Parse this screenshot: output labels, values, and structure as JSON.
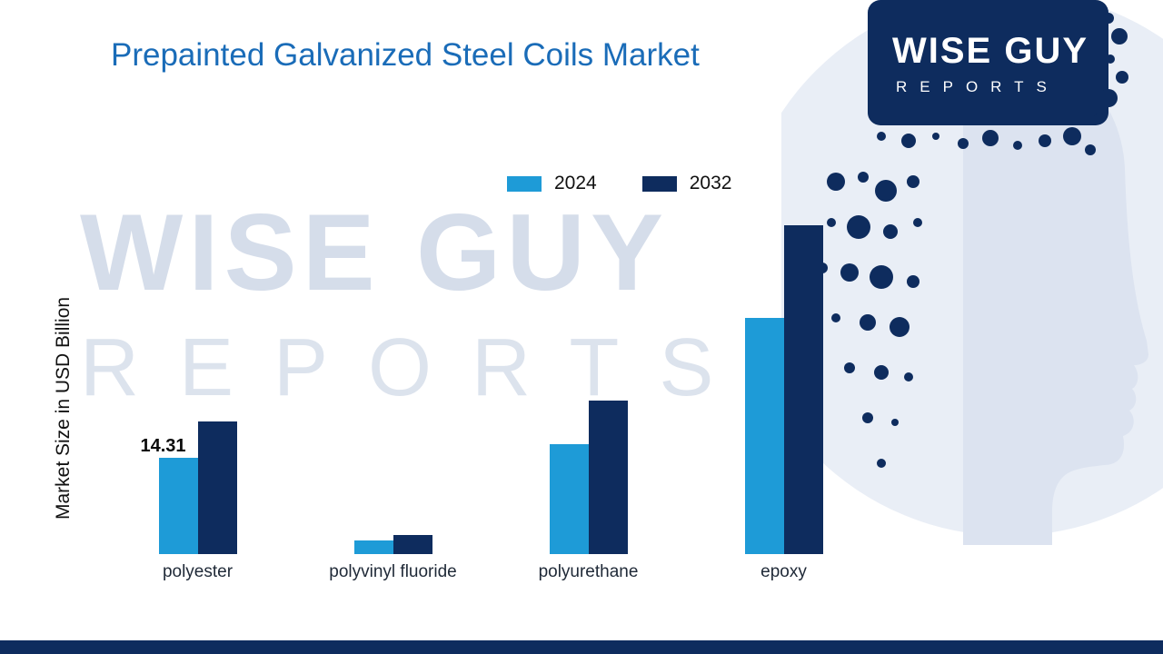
{
  "title": "Prepainted Galvanized Steel Coils Market",
  "logo": {
    "line1": "WISE GUY",
    "line2": "REPORTS"
  },
  "watermark": {
    "line1": "WISE GUY",
    "line2": "REPORTS"
  },
  "chart_data": {
    "type": "bar",
    "title": "Prepainted Galvanized Steel Coils Market",
    "xlabel": "",
    "ylabel": "Market Size in USD Billion",
    "categories": [
      "polyester",
      "polyvinyl fluoride",
      "polyurethane",
      "epoxy"
    ],
    "series": [
      {
        "name": "2024",
        "color": "#1e9bd7",
        "values": [
          14.31,
          2.0,
          16.3,
          35.2
        ]
      },
      {
        "name": "2032",
        "color": "#0e2c5e",
        "values": [
          19.7,
          2.8,
          22.8,
          48.9
        ]
      }
    ],
    "ylim": [
      0,
      50
    ],
    "grid": false,
    "legend_position": "top",
    "annotations": [
      {
        "series": "2024",
        "category": "polyester",
        "text": "14.31"
      }
    ]
  },
  "colors": {
    "title": "#1a6cb8",
    "series_2024": "#1e9bd7",
    "series_2032": "#0e2c5e",
    "watermark": "#b4c2d9",
    "footer_bar": "#0e2c5e",
    "logo_navy": "#0e2c5e",
    "art_circle": "#e9eef6",
    "art_face": "#dce3f0"
  }
}
